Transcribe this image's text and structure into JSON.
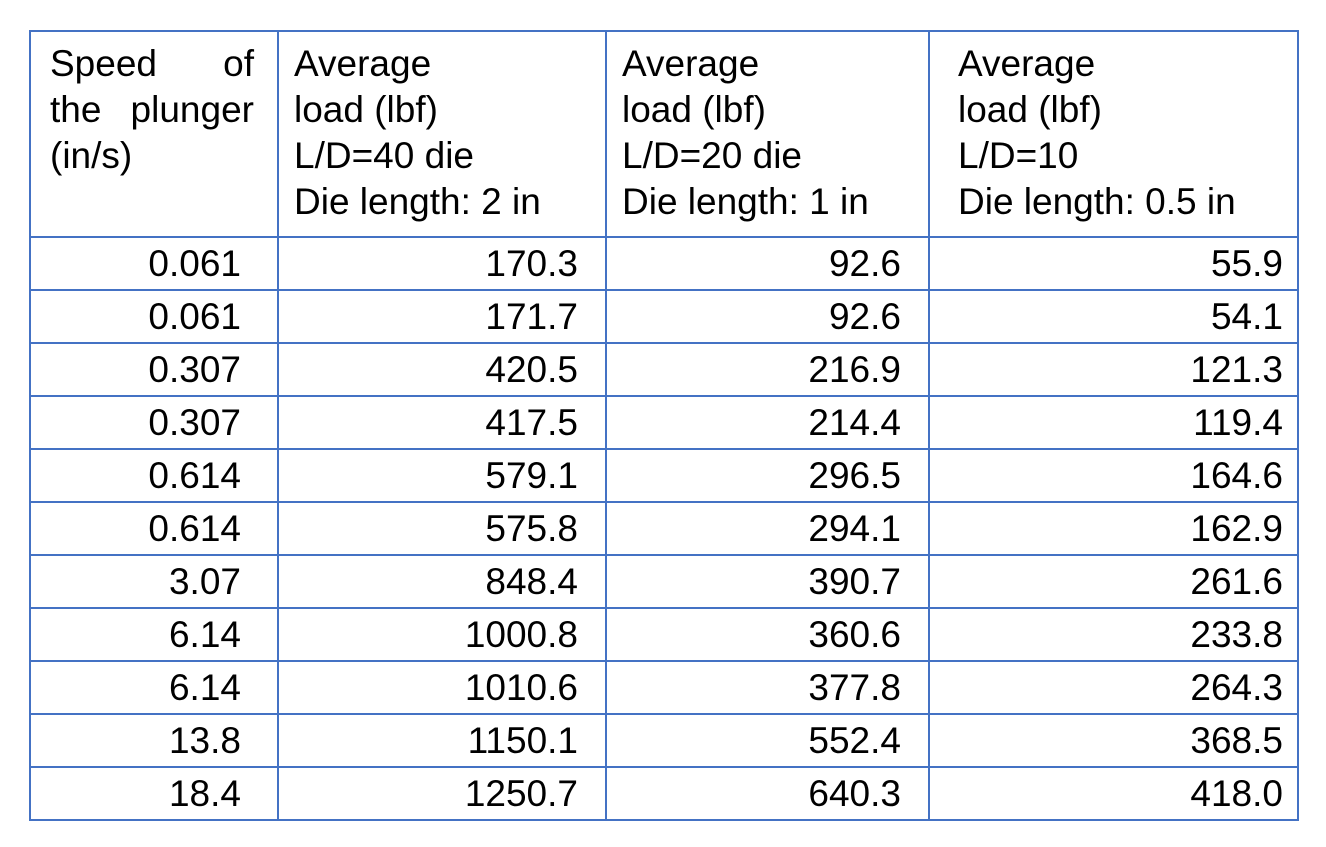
{
  "table": {
    "border_color": "#4472C4",
    "text_color": "#000000",
    "columns": [
      {
        "id": "speed",
        "header": "Speed of the plunger (in/s)"
      },
      {
        "id": "load_ld40",
        "header": "Average\nload (lbf)\nL/D=40 die\nDie length: 2 in"
      },
      {
        "id": "load_ld20",
        "header": "Average\nload (lbf)\nL/D=20 die\nDie length: 1 in"
      },
      {
        "id": "load_ld10",
        "header": "Average\nload (lbf)\nL/D=10\nDie length: 0.5 in"
      }
    ],
    "rows": [
      [
        "0.061",
        "170.3",
        "92.6",
        "55.9"
      ],
      [
        "0.061",
        "171.7",
        "92.6",
        "54.1"
      ],
      [
        "0.307",
        "420.5",
        "216.9",
        "121.3"
      ],
      [
        "0.307",
        "417.5",
        "214.4",
        "119.4"
      ],
      [
        "0.614",
        "579.1",
        "296.5",
        "164.6"
      ],
      [
        "0.614",
        "575.8",
        "294.1",
        "162.9"
      ],
      [
        "3.07",
        "848.4",
        "390.7",
        "261.6"
      ],
      [
        "6.14",
        "1000.8",
        "360.6",
        "233.8"
      ],
      [
        "6.14",
        "1010.6",
        "377.8",
        "264.3"
      ],
      [
        "13.8",
        "1150.1",
        "552.4",
        "368.5"
      ],
      [
        "18.4",
        "1250.7",
        "640.3",
        "418.0"
      ]
    ]
  },
  "chart_data": {
    "type": "table",
    "columns": [
      "Speed of the plunger (in/s)",
      "Average load (lbf) L/D=40 die, Die length: 2 in",
      "Average load (lbf) L/D=20 die, Die length: 1 in",
      "Average load (lbf) L/D=10, Die length: 0.5 in"
    ],
    "rows": [
      [
        0.061,
        170.3,
        92.6,
        55.9
      ],
      [
        0.061,
        171.7,
        92.6,
        54.1
      ],
      [
        0.307,
        420.5,
        216.9,
        121.3
      ],
      [
        0.307,
        417.5,
        214.4,
        119.4
      ],
      [
        0.614,
        579.1,
        296.5,
        164.6
      ],
      [
        0.614,
        575.8,
        294.1,
        162.9
      ],
      [
        3.07,
        848.4,
        390.7,
        261.6
      ],
      [
        6.14,
        1000.8,
        360.6,
        233.8
      ],
      [
        6.14,
        1010.6,
        377.8,
        264.3
      ],
      [
        13.8,
        1150.1,
        552.4,
        368.5
      ],
      [
        18.4,
        1250.7,
        640.3,
        418.0
      ]
    ]
  }
}
